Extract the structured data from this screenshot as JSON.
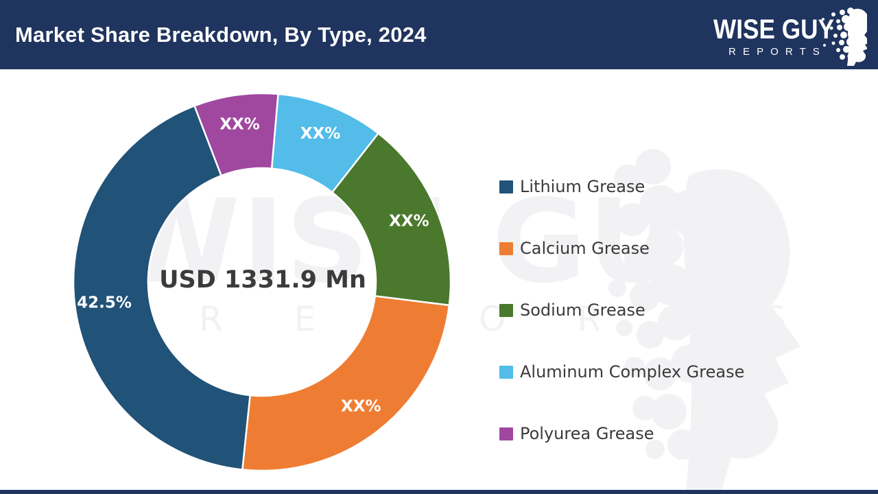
{
  "header": {
    "title": "Market Share Breakdown, By Type, 2024",
    "logo": {
      "line1": "WISE GUY",
      "line2": "R E P O R T S"
    }
  },
  "watermark": {
    "line1": "WISE GUY",
    "line2": "R E P O R T S"
  },
  "chart_data": {
    "type": "donut",
    "title": "Market Share Breakdown, By Type, 2024",
    "center_label": "USD 1331.9 Mn",
    "legend_position": "right",
    "start_angle_deg": -21,
    "direction": "clockwise-reversed-legend-order",
    "segments": [
      {
        "label": "Lithium Grease",
        "color": "#215278",
        "slice_label": "42.5%",
        "share_est_pct": 42.5
      },
      {
        "label": "Calcium Grease",
        "color": "#EE7D33",
        "slice_label": "XX%",
        "share_est_pct": 24.7
      },
      {
        "label": "Sodium Grease",
        "color": "#4A782C",
        "slice_label": "XX%",
        "share_est_pct": 16.4
      },
      {
        "label": "Aluminum Complex Grease",
        "color": "#53BCE8",
        "slice_label": "XX%",
        "share_est_pct": 9.2
      },
      {
        "label": "Polyurea Grease",
        "color": "#A0489F",
        "slice_label": "XX%",
        "share_est_pct": 7.2
      }
    ]
  },
  "colors": {
    "header_bar": "#1F345E",
    "footer_bar": "#1F345E",
    "slice_label_text": "#FFFFFF",
    "center_text": "#3B3B3B",
    "legend_text": "#3A3A3A",
    "watermark": "#F2F2F5"
  }
}
